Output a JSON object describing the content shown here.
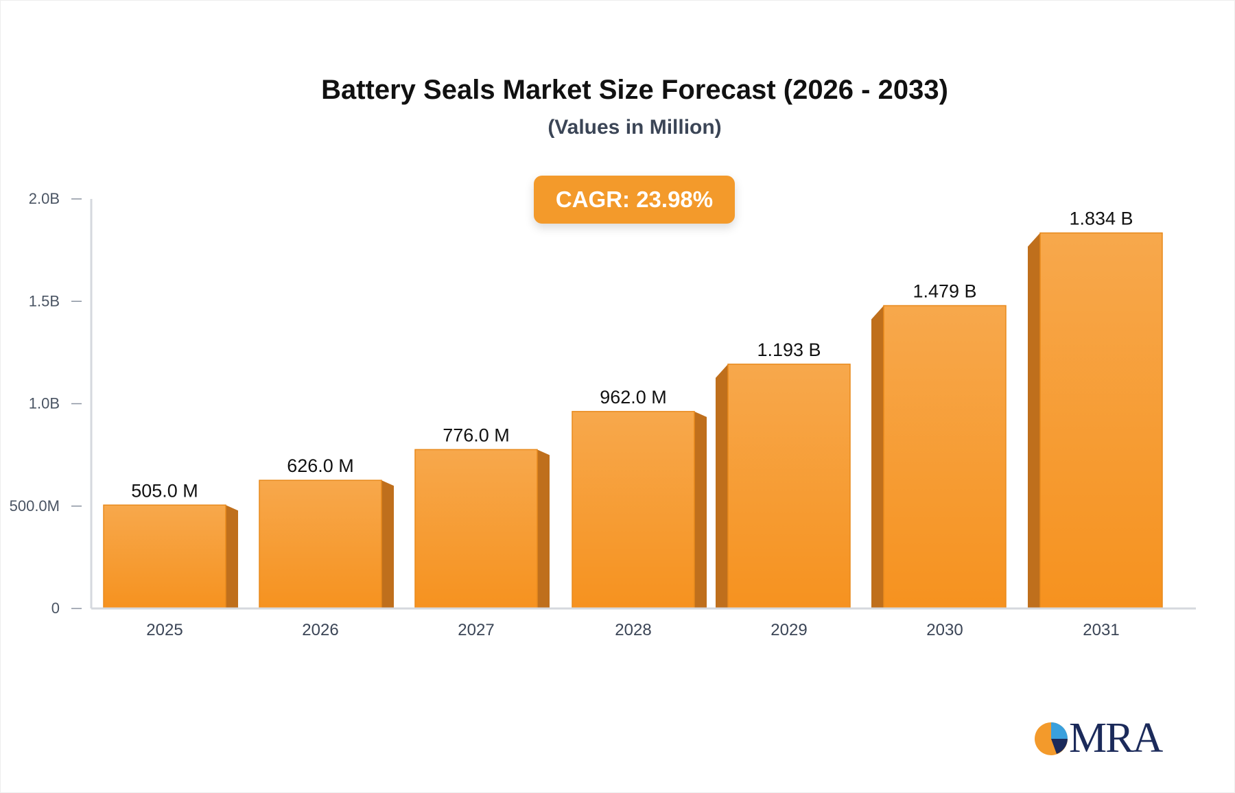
{
  "chart_data": {
    "type": "bar",
    "title": "Battery Seals Market Size Forecast (2026 - 2033)",
    "subtitle": "(Values in Million)",
    "categories": [
      "2025",
      "2026",
      "2027",
      "2028",
      "2029",
      "2030",
      "2031"
    ],
    "values": [
      505.0,
      626.0,
      776.0,
      962.0,
      1193,
      1479,
      1834
    ],
    "data_labels": [
      "505.0 M",
      "626.0 M",
      "776.0 M",
      "962.0 M",
      "1.193 B",
      "1.479 B",
      "1.834 B"
    ],
    "ylim": [
      0,
      2000
    ],
    "yticks": [
      0,
      500,
      1000,
      1500,
      2000
    ],
    "ytick_labels": [
      "0",
      "500.0M",
      "1.0B",
      "1.5B",
      "2.0B"
    ],
    "grid": false,
    "bar_color": "#f7a244",
    "bar_side_color": "#bf6f1c"
  },
  "cagr": "CAGR: 23.98%",
  "logo": "MRA"
}
